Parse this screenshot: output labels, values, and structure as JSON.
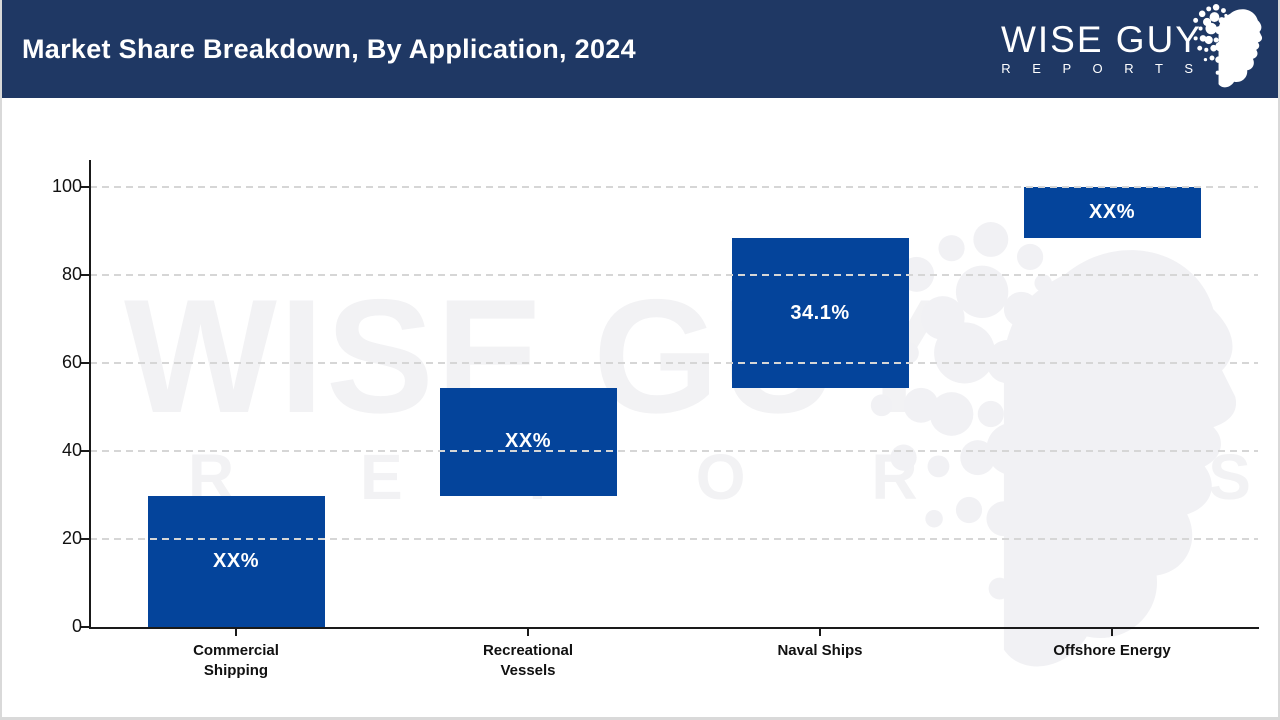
{
  "header": {
    "title": "Market Share Breakdown, By Application, 2024",
    "bg_color": "#1f3864",
    "logo": {
      "primary": "WISE GUY",
      "secondary": "R E P O R T S"
    }
  },
  "watermark": {
    "primary": "WISE GUY",
    "secondary": "R E P O R T S"
  },
  "chart_data": {
    "type": "bar",
    "subtype": "floating-waterfall",
    "title": "Market Share Breakdown, By Application, 2024",
    "xlabel": "",
    "ylabel": "",
    "ylim": [
      0,
      105
    ],
    "yticks": [
      0,
      20,
      40,
      60,
      80,
      100
    ],
    "grid": "horizontal-dashed",
    "legend": "none",
    "bar_color": "#04449b",
    "bar_label_color": "#ffffff",
    "categories": [
      "Commercial Shipping",
      "Recreational Vessels",
      "Naval Ships",
      "Offshore Energy"
    ],
    "category_display": [
      [
        "Commercial",
        "Shipping"
      ],
      [
        "Recreational",
        "Vessels"
      ],
      [
        "Naval Ships"
      ],
      [
        "Offshore Energy"
      ]
    ],
    "segments": [
      {
        "category": "Commercial Shipping",
        "start": 0,
        "end": 29.8,
        "height": 29.8,
        "label": "XX%"
      },
      {
        "category": "Recreational Vessels",
        "start": 29.8,
        "end": 54.3,
        "height": 24.5,
        "label": "XX%"
      },
      {
        "category": "Naval Ships",
        "start": 54.3,
        "end": 88.4,
        "height": 34.1,
        "label": "34.1%"
      },
      {
        "category": "Offshore Energy",
        "start": 88.4,
        "end": 100,
        "height": 11.6,
        "label": "XX%"
      }
    ]
  }
}
